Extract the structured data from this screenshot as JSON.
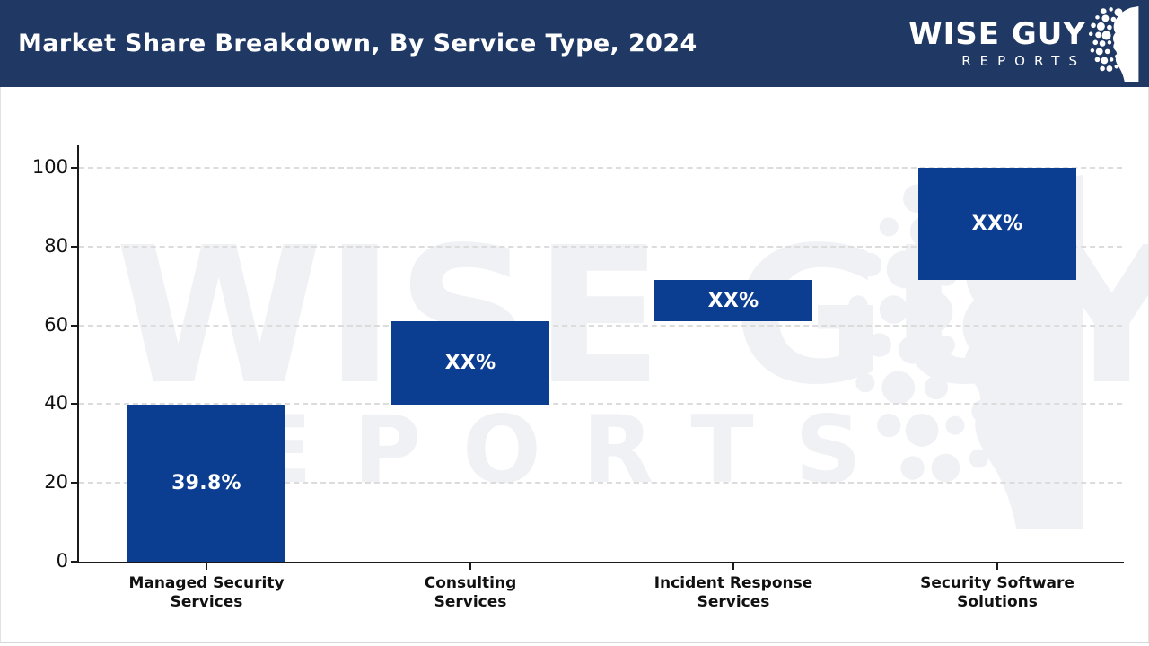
{
  "header": {
    "title": "Market Share Breakdown, By Service Type, 2024",
    "bg_color": "#203864",
    "logo": {
      "line1": "WISE GUY",
      "line2": "REPORTS",
      "icon": "face-profile-dots-icon"
    }
  },
  "watermark": {
    "line1": "WISE GUY",
    "line2": "REPORTS"
  },
  "chart_data": {
    "type": "bar",
    "subtype": "floating-waterfall",
    "title": "Market Share Breakdown, By Service Type, 2024",
    "categories": [
      "Managed Security Services",
      "Consulting Services",
      "Incident Response Services",
      "Security Software Solutions"
    ],
    "category_lines": [
      [
        "Managed Security",
        "Services"
      ],
      [
        "Consulting",
        "Services"
      ],
      [
        "Incident Response",
        "Services"
      ],
      [
        "Security Software",
        "Solutions"
      ]
    ],
    "series": [
      {
        "name": "Market share",
        "segments": [
          {
            "from": 0,
            "to": 39.8,
            "label": "39.8%"
          },
          {
            "from": 39.8,
            "to": 61.0,
            "label": "XX%"
          },
          {
            "from": 61.0,
            "to": 71.5,
            "label": "XX%"
          },
          {
            "from": 71.5,
            "to": 100,
            "label": "XX%"
          }
        ]
      }
    ],
    "xlabel": "",
    "ylabel": "",
    "ylim": [
      0,
      100
    ],
    "yticks": [
      0,
      20,
      40,
      60,
      80,
      100
    ],
    "grid": "horizontal-dashed",
    "legend": "none",
    "bar_color": "#0b3d91",
    "bar_label_color": "#ffffff",
    "axis_color": "#1a1a1a",
    "grid_color": "#dcdcdc",
    "background_color": "#ffffff"
  }
}
